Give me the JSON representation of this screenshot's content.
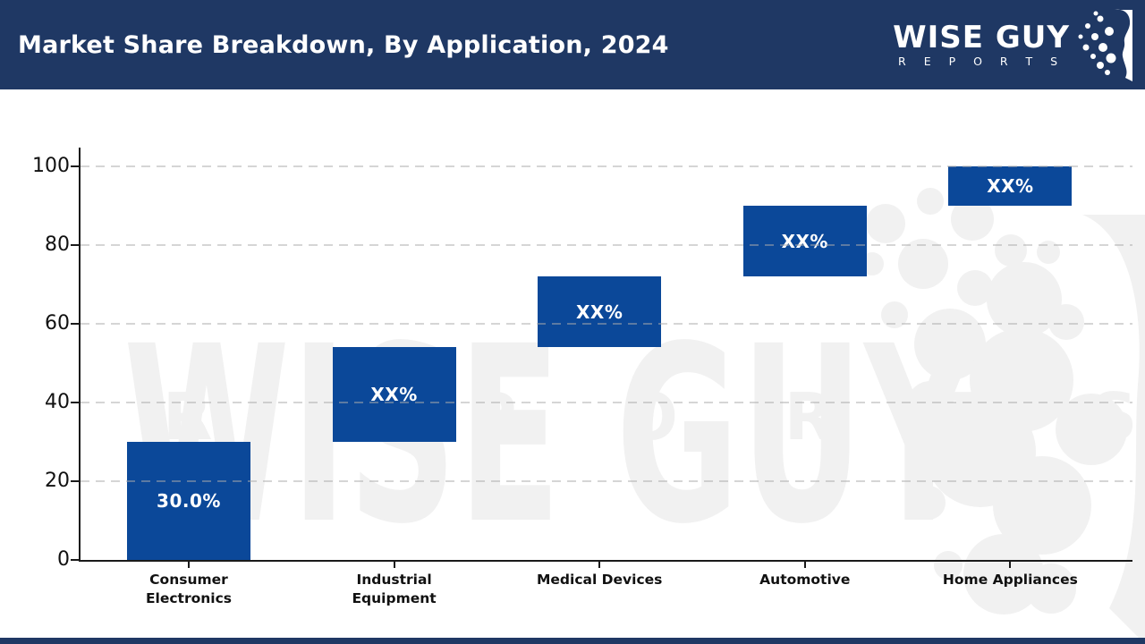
{
  "header": {
    "title": "Market Share Breakdown, By Application, 2024",
    "bg_color": "#1f3864",
    "logo": {
      "line1": "WISE GUY",
      "line2": "R E P O R T S"
    }
  },
  "watermark": {
    "line1": "WISE GUY",
    "line2": "R E P O R T S"
  },
  "chart_data": {
    "type": "bar",
    "subtype": "waterfall",
    "title": "Market Share Breakdown, By Application, 2024",
    "categories": [
      "Consumer\nElectronics",
      "Industrial\nEquipment",
      "Medical Devices",
      "Automotive",
      "Home Appliances"
    ],
    "values": [
      30,
      24,
      18,
      18,
      10
    ],
    "segments": [
      {
        "start": 0,
        "end": 30,
        "label": "30.0%"
      },
      {
        "start": 30,
        "end": 54,
        "label": "XX%"
      },
      {
        "start": 54,
        "end": 72,
        "label": "XX%"
      },
      {
        "start": 72,
        "end": 90,
        "label": "XX%"
      },
      {
        "start": 90,
        "end": 100,
        "label": "XX%"
      }
    ],
    "xlabel": "",
    "ylabel": "",
    "ylim": [
      0,
      100
    ],
    "yticks": [
      0,
      20,
      40,
      60,
      80,
      100
    ],
    "grid": "dashed horizontal",
    "legend": "none",
    "bar_color": "#0b4899",
    "label_color": "#ffffff"
  }
}
